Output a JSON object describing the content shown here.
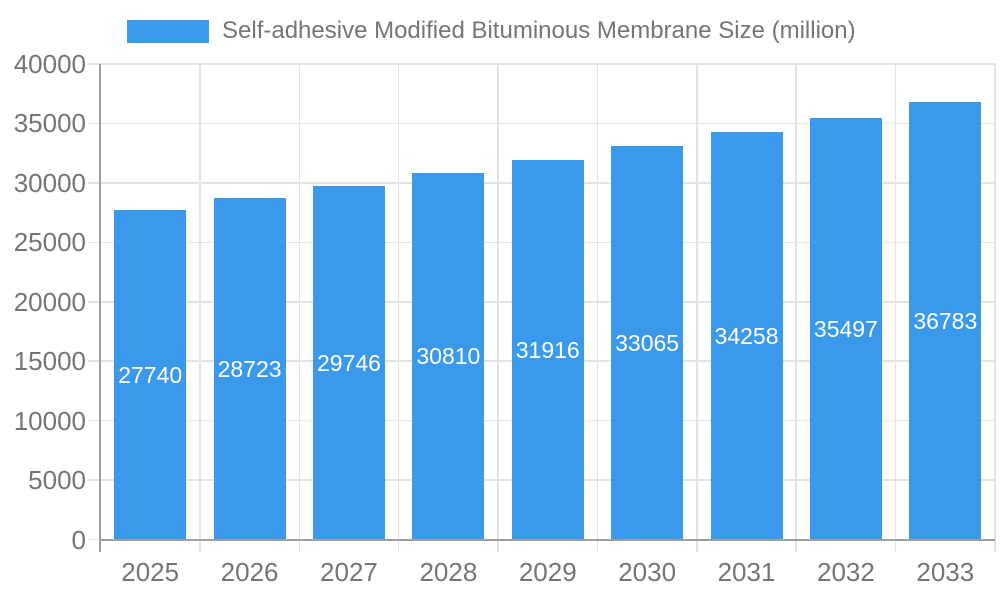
{
  "legend": {
    "label": "Self-adhesive Modified Bituminous Membrane Size (million)"
  },
  "chart_data": {
    "type": "bar",
    "title": "Self-adhesive Modified Bituminous Membrane Size (million)",
    "categories": [
      "2025",
      "2026",
      "2027",
      "2028",
      "2029",
      "2030",
      "2031",
      "2032",
      "2033"
    ],
    "series": [
      {
        "name": "Self-adhesive Modified Bituminous Membrane Size (million)",
        "values": [
          27740,
          28723,
          29746,
          30810,
          31916,
          33065,
          34258,
          35497,
          36783
        ]
      }
    ],
    "xlabel": "",
    "ylabel": "",
    "ylim": [
      0,
      40000
    ],
    "ytick_step": 5000,
    "ytick_labels": [
      "0",
      "5000",
      "10000",
      "15000",
      "20000",
      "25000",
      "30000",
      "35000",
      "40000"
    ],
    "grid": "both",
    "legend_position": "top",
    "value_labels_shown": true,
    "colors": {
      "bar": "#3b99ec",
      "bar_label_text": "#ffffff",
      "grid_line": "#e3e3e3",
      "axis_line": "#9e9e9e",
      "tick_text": "#757575",
      "legend_text": "#757575",
      "background": "#ffffff"
    }
  }
}
